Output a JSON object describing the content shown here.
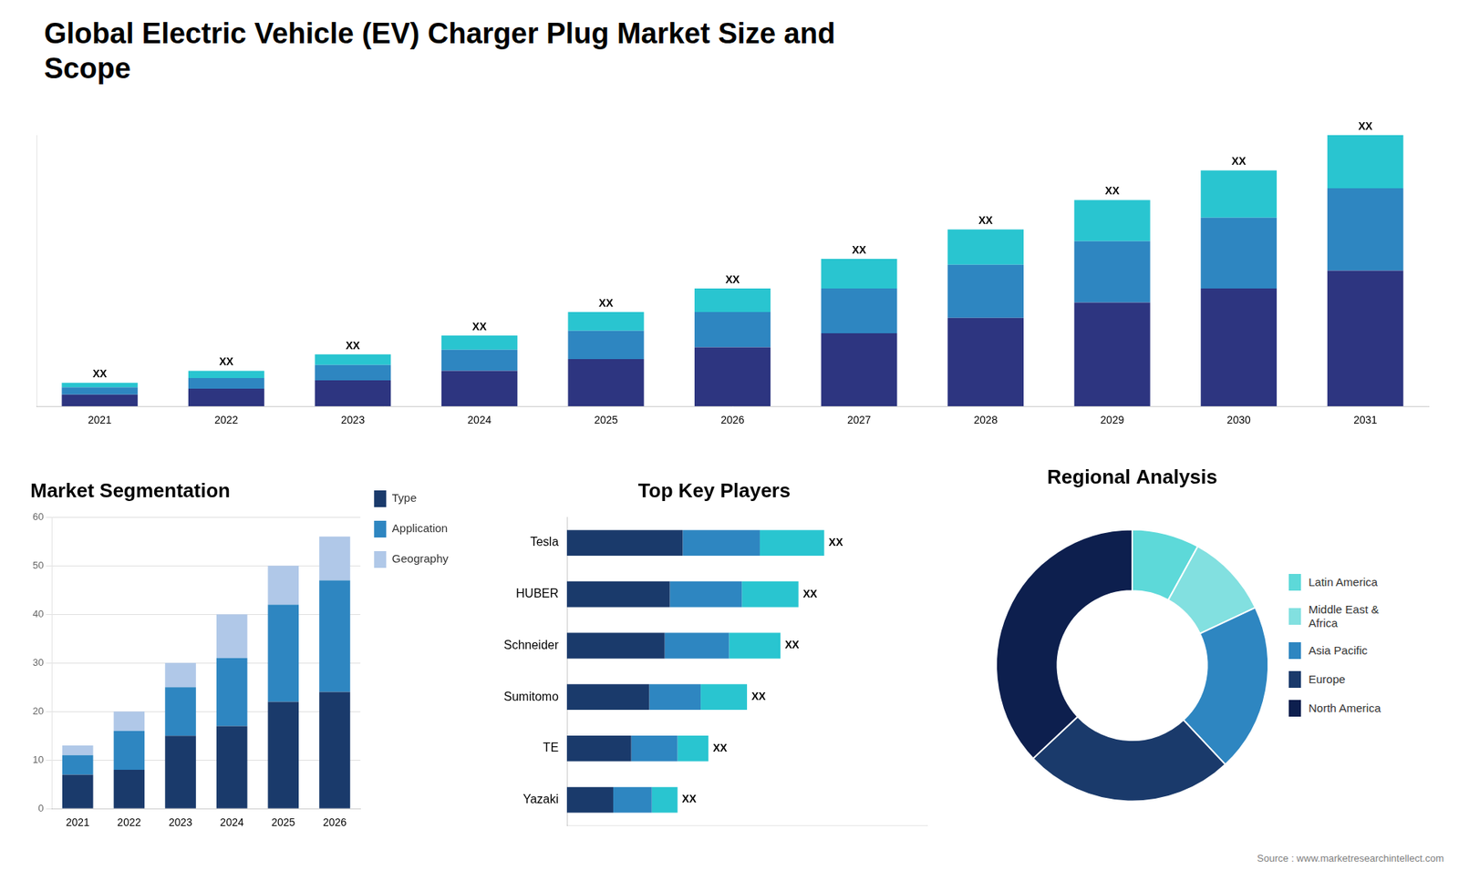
{
  "chart_data": [
    {
      "type": "bar",
      "title": "Global Electric Vehicle (EV) Charger Plug Market Size and\nScope",
      "categories": [
        "2021",
        "2022",
        "2023",
        "2024",
        "2025",
        "2026",
        "2027",
        "2028",
        "2029",
        "2030",
        "2031"
      ],
      "series": [
        {
          "color": "#2d3580",
          "values": [
            1.0,
            1.5,
            2.2,
            3.0,
            4.0,
            5.0,
            6.2,
            7.5,
            8.8,
            10.0,
            11.5
          ]
        },
        {
          "color": "#2e86c1",
          "values": [
            0.6,
            0.9,
            1.3,
            1.8,
            2.4,
            3.0,
            3.8,
            4.5,
            5.2,
            6.0,
            7.0
          ]
        },
        {
          "color": "#29c5d0",
          "values": [
            0.4,
            0.6,
            0.9,
            1.2,
            1.6,
            2.0,
            2.5,
            3.0,
            3.5,
            4.0,
            4.5
          ]
        }
      ],
      "stacked": true,
      "ylim": [
        0,
        23
      ],
      "tick_labels": "x",
      "grid": false,
      "annotations": [
        "XX",
        "XX",
        "XX",
        "XX",
        "XX",
        "XX",
        "XX",
        "XX",
        "XX",
        "XX",
        "XX"
      ]
    },
    {
      "type": "bar",
      "title": "Market Segmentation",
      "categories": [
        "2021",
        "2022",
        "2023",
        "2024",
        "2025",
        "2026"
      ],
      "series": [
        {
          "name": "Type",
          "color": "#1a3a6b",
          "values": [
            7,
            8,
            15,
            17,
            22,
            24
          ]
        },
        {
          "name": "Application",
          "color": "#2e86c1",
          "values": [
            4,
            8,
            10,
            14,
            20,
            23
          ]
        },
        {
          "name": "Geography",
          "color": "#b0c8e8",
          "values": [
            2,
            4,
            5,
            9,
            8,
            9
          ]
        }
      ],
      "stacked": true,
      "ylim": [
        0,
        60
      ],
      "yticks": [
        0,
        10,
        20,
        30,
        40,
        50,
        60
      ],
      "grid": true,
      "legend": "right"
    },
    {
      "type": "bar",
      "title": "Top Key Players",
      "orientation": "horizontal",
      "categories": [
        "Tesla",
        "HUBER",
        "Schneider",
        "Sumitomo",
        "TE",
        "Yazaki"
      ],
      "series": [
        {
          "color": "#1a3a6b",
          "values": [
            4.5,
            4.0,
            3.8,
            3.2,
            2.5,
            1.8
          ]
        },
        {
          "color": "#2e86c1",
          "values": [
            3.0,
            2.8,
            2.5,
            2.0,
            1.8,
            1.5
          ]
        },
        {
          "color": "#29c5d0",
          "values": [
            2.5,
            2.2,
            2.0,
            1.8,
            1.2,
            1.0
          ]
        }
      ],
      "stacked": true,
      "xlim": [
        0,
        14
      ],
      "tick_labels": "y",
      "grid": false,
      "annotations": [
        "XX",
        "XX",
        "XX",
        "XX",
        "XX",
        "XX"
      ]
    },
    {
      "type": "doughnut",
      "title": "Regional Analysis",
      "categories": [
        "Latin America",
        "Middle East &\nAfrica",
        "Asia Pacific",
        "Europe",
        "North America"
      ],
      "values": [
        8,
        10,
        20,
        25,
        37
      ],
      "colors": [
        "#5dd9d9",
        "#82e0e0",
        "#2e86c1",
        "#1a3a6b",
        "#0d1f4e"
      ],
      "legend": "right",
      "annotations": [
        "Source : www.marketresearchintellect.com"
      ]
    }
  ]
}
